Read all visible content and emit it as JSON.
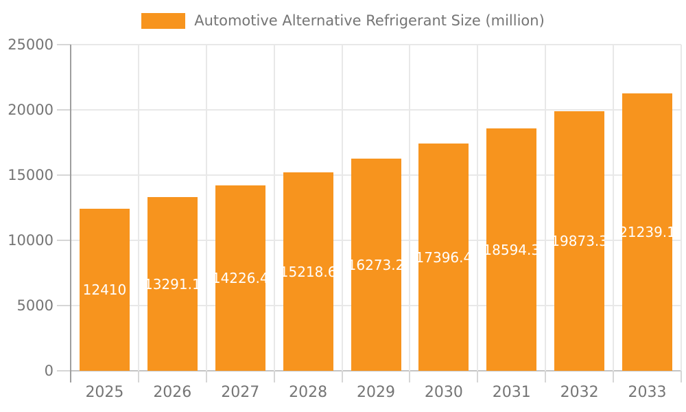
{
  "legend": {
    "label": "Automotive Alternative Refrigerant Size (million)",
    "swatch_color": "#F7941E"
  },
  "chart_data": {
    "type": "bar",
    "title": "Automotive Alternative Refrigerant Size (million)",
    "categories": [
      "2025",
      "2026",
      "2027",
      "2028",
      "2029",
      "2030",
      "2031",
      "2032",
      "2033"
    ],
    "series": [
      {
        "name": "Automotive Alternative Refrigerant Size (million)",
        "values": [
          12410,
          13291.1,
          14226.4,
          15218.6,
          16273.2,
          17396.4,
          18594.3,
          19873.3,
          21239.1
        ]
      }
    ],
    "bar_labels": [
      "12410",
      "13291.1",
      "14226.4",
      "15218.6",
      "16273.2",
      "17396.4",
      "18594.3",
      "19873.3",
      "21239.1"
    ],
    "xlabel": "",
    "ylabel": "",
    "ylim": [
      0,
      25000
    ],
    "y_ticks": [
      0,
      5000,
      10000,
      15000,
      20000,
      25000
    ],
    "grid": true,
    "legend_position": "top",
    "colors": {
      "bar": "#F7941E",
      "bar_label_text": "#ffffff",
      "axis_text": "#757575",
      "axis_line": "#9E9E9E",
      "gridline": "#E8E8E8",
      "zero_line": "#C4C4C4",
      "tick": "#D6D6D6",
      "background": "#ffffff"
    }
  }
}
